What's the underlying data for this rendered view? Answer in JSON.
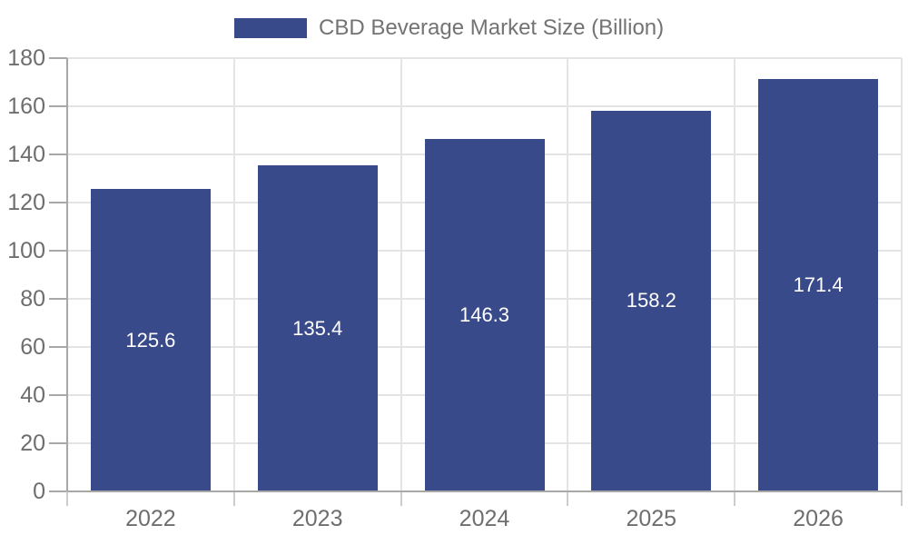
{
  "chart_data": {
    "type": "bar",
    "title": "",
    "legend": {
      "label": "CBD Beverage Market Size (Billion)",
      "position": "top"
    },
    "categories": [
      "2022",
      "2023",
      "2024",
      "2025",
      "2026"
    ],
    "series": [
      {
        "name": "CBD Beverage Market Size (Billion)",
        "values": [
          125.6,
          135.4,
          146.3,
          158.2,
          171.4
        ]
      }
    ],
    "value_labels": [
      "125.6",
      "135.4",
      "146.3",
      "158.2",
      "171.4"
    ],
    "xlabel": "",
    "ylabel": "",
    "ylim": [
      0,
      180
    ],
    "ytick_step": 20,
    "yticks": [
      0,
      20,
      40,
      60,
      80,
      100,
      120,
      140,
      160,
      180
    ],
    "grid": true,
    "colors": {
      "bar": "#394a8a",
      "value_label": "#ffffff",
      "legend_text": "#737373",
      "tick_label": "#6e6e6e",
      "axis_line": "#a8a8a8",
      "gridline": "#e4e4e4",
      "x_tick": "#cccccc",
      "background": "#ffffff"
    }
  }
}
